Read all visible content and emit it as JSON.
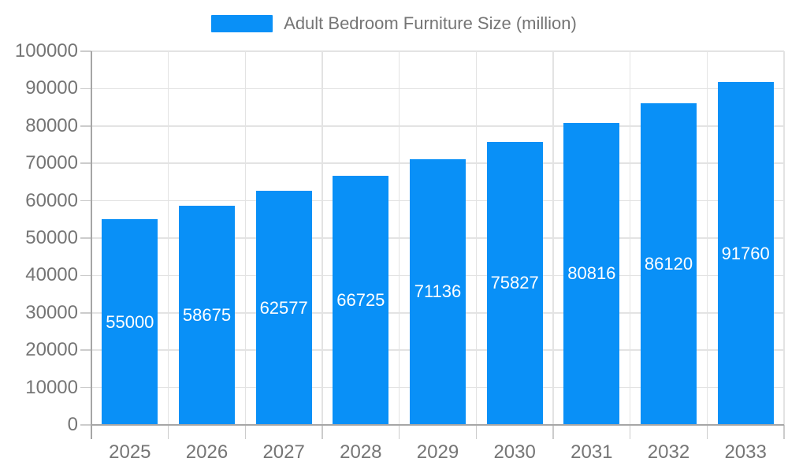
{
  "chart_data": {
    "type": "bar",
    "title": "Adult Bedroom Furniture Size (million)",
    "categories": [
      "2025",
      "2026",
      "2027",
      "2028",
      "2029",
      "2030",
      "2031",
      "2032",
      "2033"
    ],
    "values": [
      55000,
      58675,
      62577,
      66725,
      71136,
      75827,
      80816,
      86120,
      91760
    ],
    "xlabel": "",
    "ylabel": "",
    "ylim": [
      0,
      100000
    ],
    "ytick_step": 10000,
    "yticks": [
      0,
      10000,
      20000,
      30000,
      40000,
      50000,
      60000,
      70000,
      80000,
      90000,
      100000
    ],
    "grid": true,
    "legend_position": "top",
    "bar_color": "#0990f7",
    "value_label_color": "#ffffff",
    "axis_color": "#a6a6a6",
    "grid_color": "#e3e3e3",
    "tick_color": "#cccccc",
    "text_color": "#757575",
    "background_color": "#ffffff"
  }
}
